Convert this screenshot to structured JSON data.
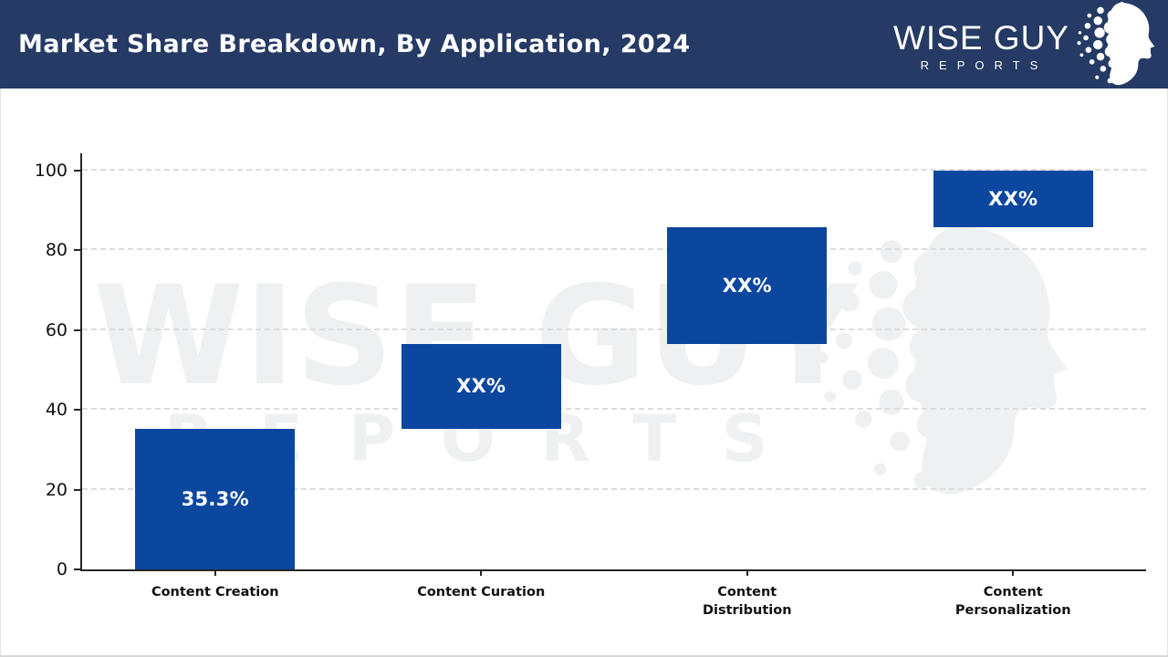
{
  "chart_data": {
    "type": "bar",
    "subtype": "waterfall",
    "title": "Market Share Breakdown, By Application, 2024",
    "categories": [
      "Content Creation",
      "Content Curation",
      "Content\nDistribution",
      "Content\nPersonalization"
    ],
    "segments": [
      {
        "category": "Content Creation",
        "start": 0,
        "end": 35.3,
        "label": "35.3%"
      },
      {
        "category": "Content Curation",
        "start": 35.3,
        "end": 56.5,
        "label": "XX%"
      },
      {
        "category": "Content Distribution",
        "start": 56.5,
        "end": 85.9,
        "label": "XX%"
      },
      {
        "category": "Content Personalization",
        "start": 85.9,
        "end": 100,
        "label": "XX%"
      }
    ],
    "xlabel": "",
    "ylabel": "",
    "ylim": [
      0,
      100
    ],
    "yticks": [
      0,
      20,
      40,
      60,
      80,
      100
    ],
    "grid": "horizontal-dashed",
    "legend": "none"
  },
  "logo": {
    "line1": "WISE GUY",
    "line2": "REPORTS"
  },
  "watermark": {
    "line1": "WISE GUY",
    "line2": "REPORTS"
  },
  "colors": {
    "navy": "#253a64",
    "bar_blue": "#0c479f",
    "axis": "#262626",
    "grid": "#dcdcdc",
    "watermark": "#eff0f2"
  }
}
